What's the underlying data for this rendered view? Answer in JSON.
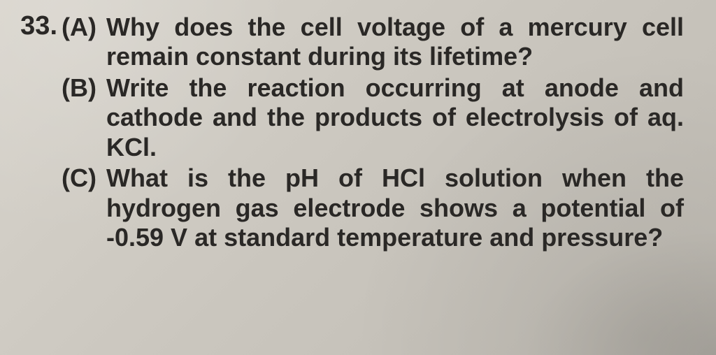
{
  "page": {
    "background_gradient": [
      "#d8d4cc",
      "#cac6be",
      "#bfbbb3"
    ],
    "text_color": "#2a2826",
    "font_family": "Comic Sans MS",
    "font_weight": 700,
    "font_size_pt": 27,
    "line_height": 1.18,
    "justify": true
  },
  "question": {
    "number": "33.",
    "parts": [
      {
        "label": "(A)",
        "text": "Why does the cell voltage of a mercury cell remain constant during its lifetime?"
      },
      {
        "label": "(B)",
        "text": "Write the reaction occurring at anode and cathode and the products of electrolysis of aq. KCl."
      },
      {
        "label": "(C)",
        "text": "What is the pH of HCl solution when the hydrogen gas electrode shows a potential of -0.59 V at standard temperature and pressure?"
      }
    ]
  }
}
